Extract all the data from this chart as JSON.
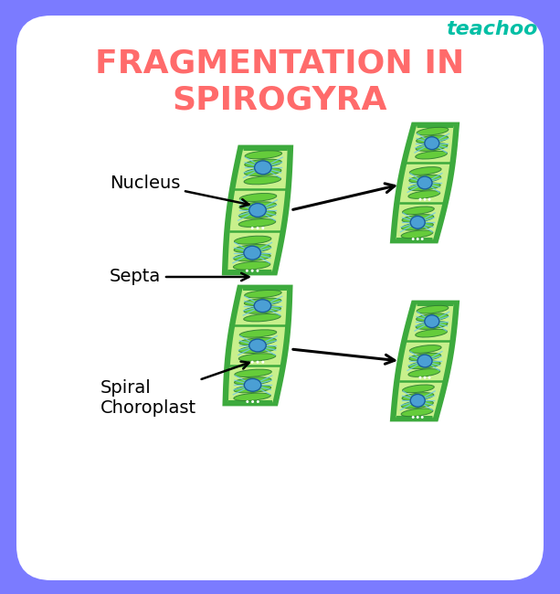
{
  "title_line1": "FRAGMENTATION IN",
  "title_line2": "SPIROGYRA",
  "title_color": "#FF6B6B",
  "bg_color": "#7B7BFF",
  "inner_bg": "#FFFFFF",
  "brand": "teachoo",
  "brand_color": "#00BFA5",
  "label_nucleus": "Nucleus",
  "label_septa": "Septa",
  "label_chloroplast": "Spiral\nChoroplast",
  "cell_outer_color": "#3DAA3D",
  "cell_inner_color": "#AADE6A",
  "cell_fill_color": "#C8F08C",
  "chloroplast_color": "#5AC832",
  "nucleus_color": "#4B9FD4",
  "nucleus_dark": "#2060A0",
  "spiral_line_color": "#70C8F0",
  "septa_color": "#3DAA3D",
  "figsize": [
    6.13,
    6.5
  ],
  "dpi": 100
}
